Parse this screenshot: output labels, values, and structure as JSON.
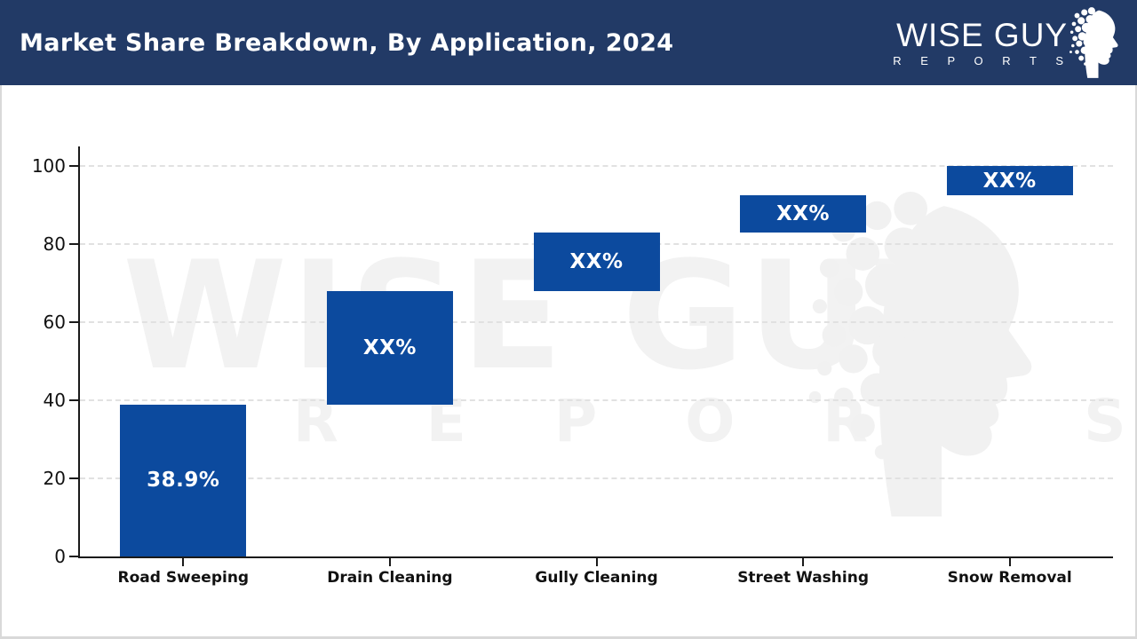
{
  "header": {
    "title": "Market Share Breakdown, By Application, 2024",
    "brand": {
      "line1": "WISE GUY",
      "line2": "R E P O R T S",
      "face_icon": "dotted-head-profile-icon"
    }
  },
  "watermark": {
    "line1": "WISE GUY",
    "line2": "R E P O R T S",
    "face_icon": "dotted-head-profile-icon"
  },
  "chart_data": {
    "type": "bar",
    "subtype": "waterfall",
    "title": "Market Share Breakdown, By Application, 2024",
    "categories": [
      "Road Sweeping",
      "Drain Cleaning",
      "Gully Cleaning",
      "Street Washing",
      "Snow Removal"
    ],
    "segments": [
      {
        "category": "Road Sweeping",
        "start": 0,
        "end": 38.9,
        "label": "38.9%"
      },
      {
        "category": "Drain Cleaning",
        "start": 38.9,
        "end": 68.0,
        "label": "XX%"
      },
      {
        "category": "Gully Cleaning",
        "start": 68.0,
        "end": 83.0,
        "label": "XX%"
      },
      {
        "category": "Street Washing",
        "start": 83.0,
        "end": 92.5,
        "label": "XX%"
      },
      {
        "category": "Snow Removal",
        "start": 92.5,
        "end": 100.0,
        "label": "XX%"
      }
    ],
    "yticks": [
      0,
      20,
      40,
      60,
      80,
      100
    ],
    "ylim": [
      0,
      100
    ],
    "xlabel": "",
    "ylabel": "",
    "grid": "dashed-horizontal",
    "legend": "none",
    "bar_color": "#0c4a9e",
    "bar_label_color": "#ffffff",
    "axis_color": "#1a1a1a",
    "grid_color": "#e1e1e1"
  },
  "colors": {
    "header_bg": "#223a66",
    "page_bg": "#ffffff",
    "watermark": "#f2f2f2",
    "border": "#d9d9d9"
  }
}
